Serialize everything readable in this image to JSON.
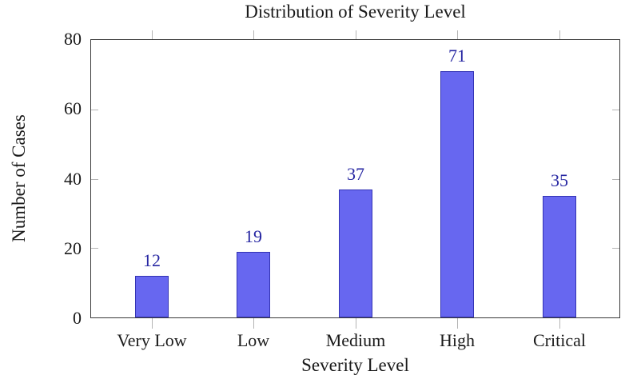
{
  "chart_data": {
    "type": "bar",
    "title": "Distribution of Severity Level",
    "xlabel": "Severity Level",
    "ylabel": "Number of Cases",
    "categories": [
      "Very Low",
      "Low",
      "Medium",
      "High",
      "Critical"
    ],
    "values": [
      12,
      19,
      37,
      71,
      35
    ],
    "ylim": [
      0,
      80
    ],
    "yticks": [
      0,
      20,
      40,
      60,
      80
    ],
    "grid": false,
    "legend_position": "none",
    "colors": {
      "bar_fill": "#6767f0",
      "bar_border": "#3333b4",
      "value_label": "#2626a2",
      "axis_frame": "#3a3a3a",
      "tick_mark": "#b4b4b4",
      "text": "#1a1a1a"
    }
  }
}
